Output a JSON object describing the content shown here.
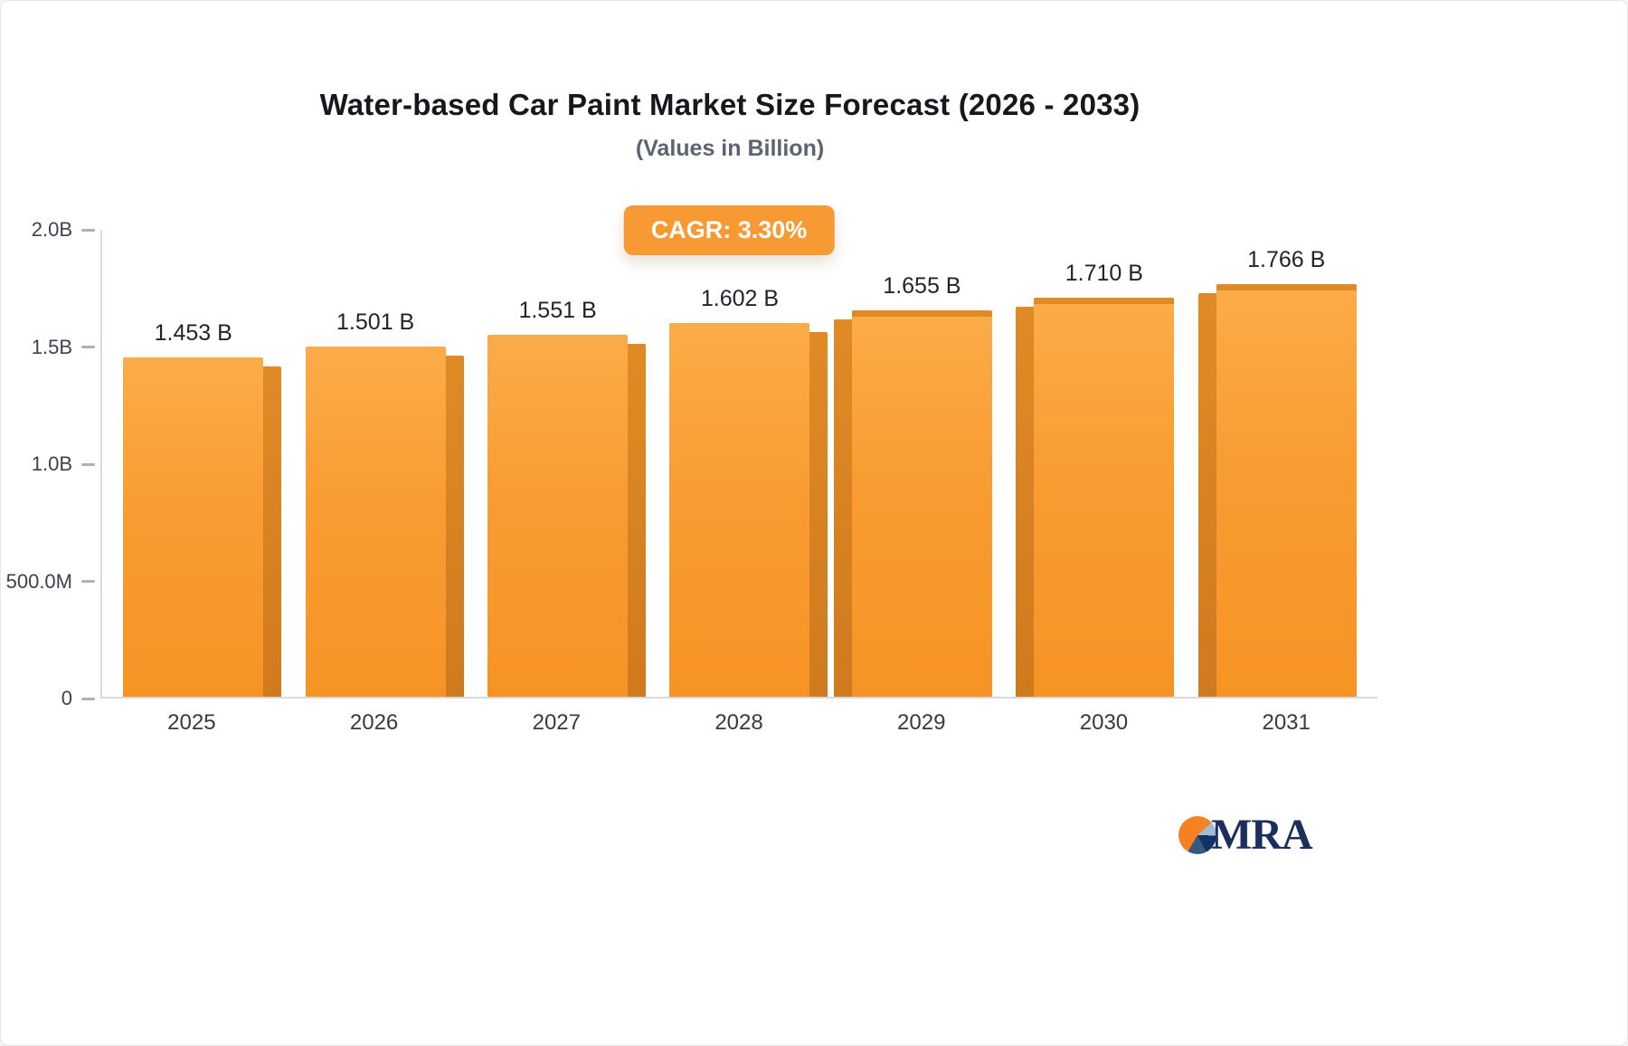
{
  "chart_data": {
    "type": "bar",
    "title": "Water-based Car Paint Market Size Forecast (2026 - 2033)",
    "subtitle": "(Values in Billion)",
    "badge": "CAGR: 3.30%",
    "categories": [
      "2025",
      "2026",
      "2027",
      "2028",
      "2029",
      "2030",
      "2031"
    ],
    "values": [
      1.453,
      1.501,
      1.551,
      1.602,
      1.655,
      1.71,
      1.766
    ],
    "value_labels": [
      "1.453 B",
      "1.501 B",
      "1.551 B",
      "1.602 B",
      "1.655 B",
      "1.710 B",
      "1.766 B"
    ],
    "xlabel": "",
    "ylabel": "",
    "ylim": [
      0,
      2.0
    ],
    "ytick_labels": [
      "2.0B",
      "1.5B",
      "1.0B",
      "500.0M",
      "0"
    ],
    "grid": false,
    "legend": "none",
    "colors": {
      "bar_top": "#fbac49",
      "bar_bottom": "#f79325",
      "bar_side": "#d27b20",
      "badge_bg": "#f89a33",
      "badge_text": "#ffffff"
    }
  },
  "logo": {
    "text": "MRA"
  }
}
